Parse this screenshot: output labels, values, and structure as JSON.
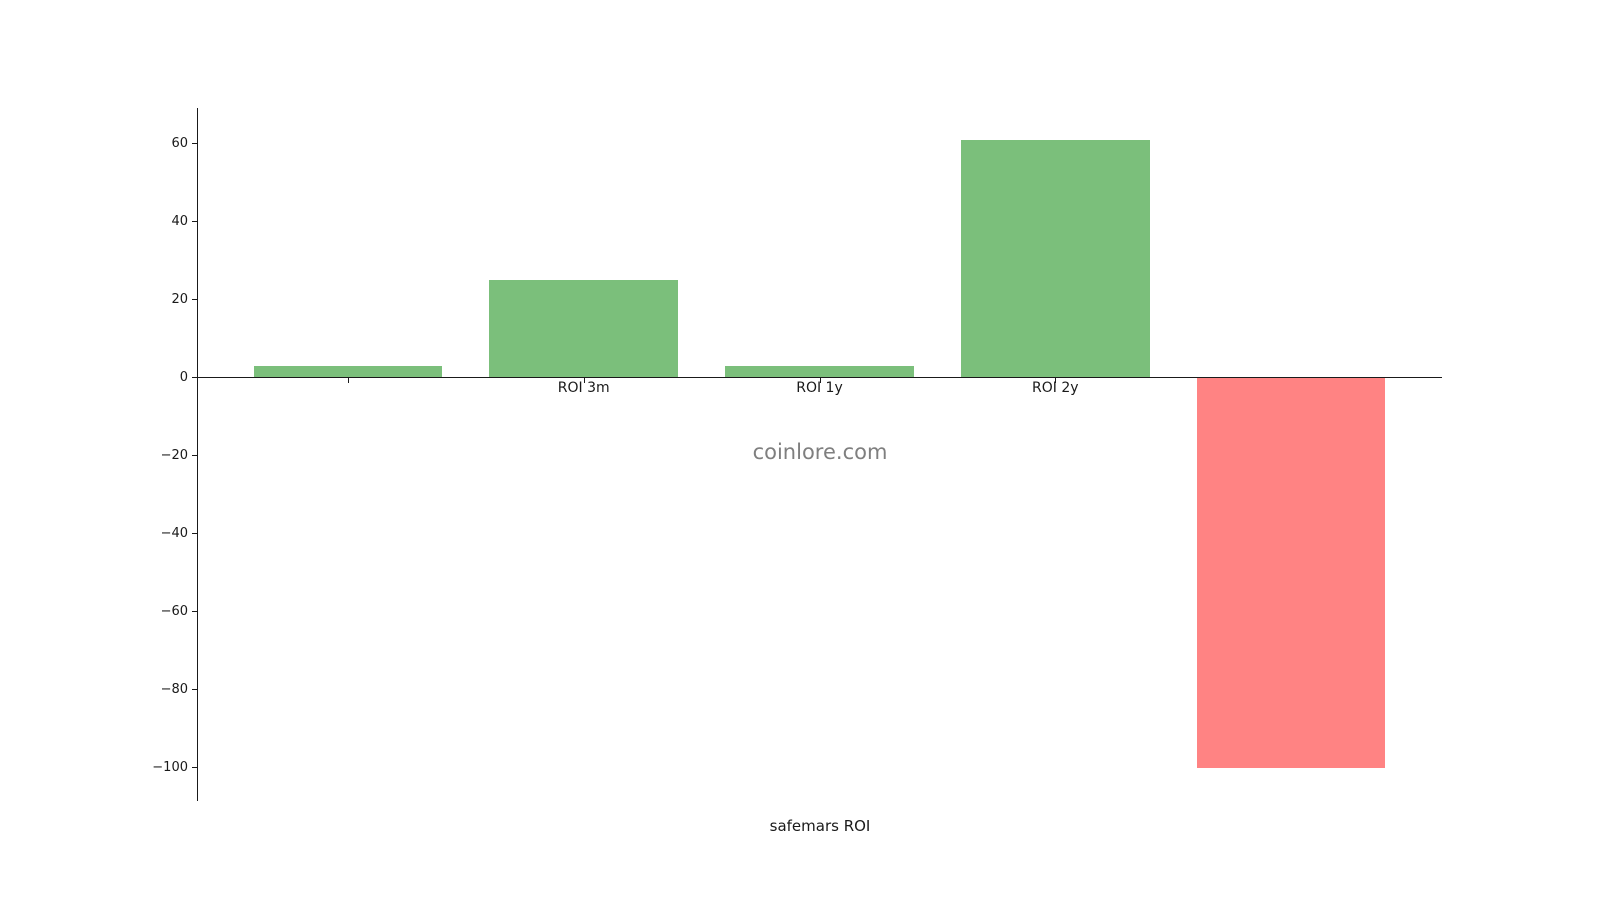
{
  "page": {
    "background": "#ffffff"
  },
  "watermark": {
    "text": "coinlore.com",
    "color": "#7f7f7f"
  },
  "chart_data": {
    "type": "bar",
    "title": "safemars ROI",
    "title_position": "bottom-center",
    "categories": [
      "",
      "ROI 3m",
      "ROI 1y",
      "ROI 2y",
      ""
    ],
    "values": [
      3,
      25,
      3,
      61,
      -100
    ],
    "series": [
      {
        "name": "safemars ROI",
        "values": [
          3,
          25,
          3,
          61,
          -100
        ]
      }
    ],
    "xlabel": "",
    "ylabel": "",
    "ylim": [
      -108.5,
      69.2
    ],
    "xlim": [
      -0.64,
      4.64
    ],
    "bar_width_units": 0.8,
    "yticks": [
      {
        "v": 60,
        "label": "60"
      },
      {
        "v": 40,
        "label": "40"
      },
      {
        "v": 20,
        "label": "20"
      },
      {
        "v": 0,
        "label": "0"
      },
      {
        "v": -20,
        "label": "−20"
      },
      {
        "v": -40,
        "label": "−40"
      },
      {
        "v": -60,
        "label": "−60"
      },
      {
        "v": -80,
        "label": "−80"
      },
      {
        "v": -100,
        "label": "−100"
      }
    ],
    "grid": false,
    "legend": null,
    "colors": {
      "positive_bar": "#7bbf7b",
      "negative_bar": "#ff8383",
      "axis": "#1a1a1a",
      "tick_label": "#1a1a1a"
    }
  }
}
